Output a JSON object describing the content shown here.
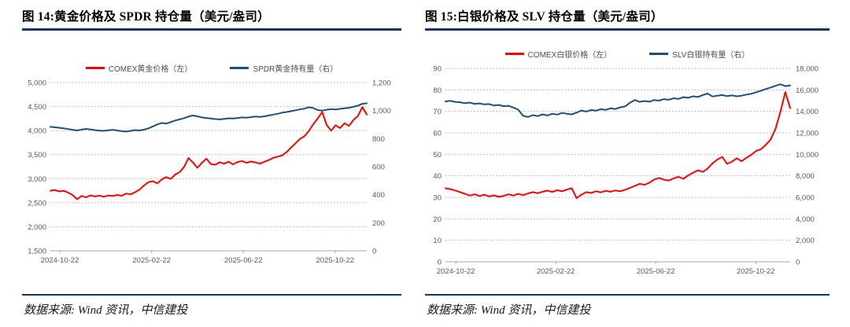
{
  "panels": [
    {
      "figure_title": "图 14:黄金价格及 SPDR 持仓量（美元/盎司）",
      "source": "数据来源: Wind 资讯，中信建投"
    },
    {
      "figure_title": "图 15:白银价格及 SLV 持仓量（美元/盎司）",
      "source": "数据来源: Wind 资讯，中信建投"
    }
  ],
  "colors": {
    "accent_rule": "#17375E",
    "price_line": "#FF0000",
    "holdings_line": "#1F4E79",
    "grid": "#BFBFBF",
    "axis_text": "#595959"
  },
  "chart_data": [
    {
      "type": "line",
      "title": "图 14:黄金价格及 SPDR 持仓量（美元/盎司）",
      "legend_position": "top",
      "grid": true,
      "left_axis": {
        "min": 1500,
        "max": 5000,
        "step": 500
      },
      "right_axis": {
        "min": 0,
        "max": 1200,
        "step": 200
      },
      "x_ticks": [
        {
          "label": "2024-10-22",
          "pos": 0.03
        },
        {
          "label": "2025-02-22",
          "pos": 0.32
        },
        {
          "label": "2025-06-22",
          "pos": 0.61
        },
        {
          "label": "2025-10-22",
          "pos": 0.9
        }
      ],
      "series": [
        {
          "id": "comex-gold-price",
          "name": "COMEX黄金价格（左）",
          "axis": "left",
          "color": "#FF0000",
          "values": [
            2750,
            2762,
            2735,
            2748,
            2710,
            2660,
            2572,
            2640,
            2610,
            2655,
            2628,
            2648,
            2622,
            2652,
            2638,
            2662,
            2645,
            2690,
            2672,
            2718,
            2770,
            2858,
            2928,
            2948,
            2900,
            2985,
            3032,
            2995,
            3085,
            3135,
            3245,
            3428,
            3335,
            3225,
            3330,
            3415,
            3305,
            3290,
            3342,
            3312,
            3352,
            3298,
            3345,
            3368,
            3330,
            3356,
            3338,
            3312,
            3352,
            3385,
            3432,
            3458,
            3482,
            3552,
            3645,
            3735,
            3825,
            3882,
            3992,
            4135,
            4255,
            4385,
            4118,
            3998,
            4112,
            4052,
            4152,
            4098,
            4222,
            4302,
            4488,
            4335
          ]
        },
        {
          "id": "spdr-gold-holdings",
          "name": "SPDR黄金持有量（右）",
          "axis": "right",
          "color": "#1F4E79",
          "values": [
            884,
            881,
            877,
            873,
            868,
            863,
            858,
            864,
            869,
            866,
            861,
            857,
            855,
            859,
            863,
            858,
            853,
            850,
            855,
            861,
            858,
            864,
            873,
            887,
            901,
            912,
            907,
            918,
            929,
            937,
            946,
            957,
            965,
            959,
            951,
            947,
            943,
            939,
            937,
            941,
            945,
            943,
            947,
            951,
            949,
            953,
            957,
            955,
            959,
            965,
            971,
            977,
            985,
            990,
            996,
            1002,
            1008,
            1014,
            1024,
            1018,
            1004,
            1000,
            1006,
            1010,
            1008,
            1012,
            1016,
            1020,
            1027,
            1035,
            1048,
            1052
          ]
        }
      ]
    },
    {
      "type": "line",
      "title": "图 15:白银价格及 SLV 持仓量（美元/盎司）",
      "legend_position": "top",
      "grid": true,
      "left_axis": {
        "min": 0,
        "max": 90,
        "step": 10
      },
      "right_axis": {
        "min": 0,
        "max": 18000,
        "step": 2000
      },
      "x_ticks": [
        {
          "label": "2024-10-22",
          "pos": 0.03
        },
        {
          "label": "2025-02-22",
          "pos": 0.32
        },
        {
          "label": "2025-06-22",
          "pos": 0.61
        },
        {
          "label": "2025-10-22",
          "pos": 0.9
        }
      ],
      "series": [
        {
          "id": "comex-silver-price",
          "name": "COMEX白银价格（左）",
          "axis": "left",
          "color": "#FF0000",
          "values": [
            34.2,
            33.8,
            33.2,
            32.4,
            31.6,
            30.8,
            31.4,
            30.6,
            31.2,
            30.4,
            30.9,
            30.2,
            30.7,
            31.4,
            30.8,
            31.6,
            31.0,
            31.8,
            32.4,
            31.9,
            32.6,
            33.1,
            32.5,
            33.3,
            32.8,
            33.6,
            34.2,
            29.6,
            31.2,
            32.4,
            32.0,
            32.8,
            32.3,
            33.0,
            32.6,
            33.2,
            32.8,
            33.5,
            34.4,
            35.3,
            36.3,
            35.8,
            36.8,
            38.3,
            39.0,
            38.2,
            37.8,
            38.8,
            39.5,
            38.6,
            40.2,
            41.4,
            42.6,
            41.8,
            43.4,
            45.8,
            47.6,
            48.8,
            45.6,
            46.6,
            48.2,
            46.8,
            48.4,
            49.8,
            51.6,
            52.4,
            54.5,
            57.0,
            62.0,
            70.0,
            79.0,
            71.5
          ]
        },
        {
          "id": "slv-silver-holdings",
          "name": "SLV白银持有量（右）",
          "axis": "right",
          "color": "#1F4E79",
          "values": [
            14920,
            14980,
            14880,
            14850,
            14760,
            14820,
            14700,
            14740,
            14650,
            14680,
            14550,
            14600,
            14480,
            14520,
            14350,
            14150,
            13580,
            13480,
            13650,
            13560,
            13720,
            13620,
            13780,
            13700,
            13850,
            13780,
            13720,
            13880,
            14080,
            13980,
            14120,
            14060,
            14200,
            14140,
            14280,
            14220,
            14380,
            14460,
            14800,
            15060,
            14880,
            14960,
            14900,
            15060,
            15000,
            15140,
            15080,
            15220,
            15160,
            15320,
            15260,
            15400,
            15340,
            15520,
            15660,
            15380,
            15460,
            15520,
            15420,
            15480,
            15400,
            15460,
            15560,
            15640,
            15780,
            15920,
            16080,
            16220,
            16380,
            16520,
            16350,
            16420
          ]
        }
      ]
    }
  ]
}
